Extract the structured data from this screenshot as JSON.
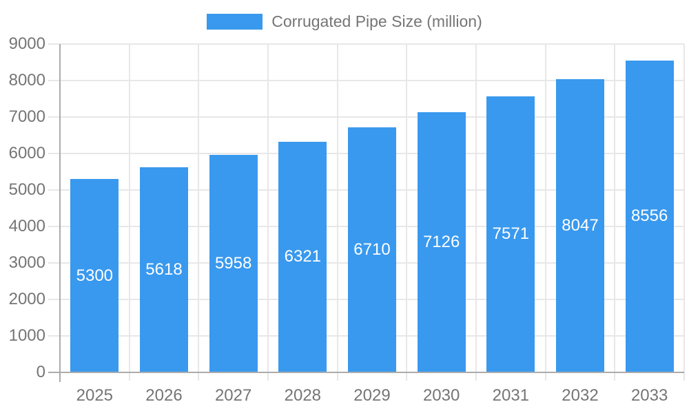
{
  "chart_data": {
    "type": "bar",
    "title": "Corrugated Pipe Size (million)",
    "legend": {
      "entries": [
        "Corrugated Pipe Size (million)"
      ],
      "position": "top-center"
    },
    "categories": [
      "2025",
      "2026",
      "2027",
      "2028",
      "2029",
      "2030",
      "2031",
      "2032",
      "2033"
    ],
    "series": [
      {
        "name": "Corrugated Pipe Size (million)",
        "values": [
          5300,
          5618,
          5958,
          6321,
          6710,
          7126,
          7571,
          8047,
          8556
        ]
      }
    ],
    "xlabel": "",
    "ylabel": "",
    "ylim": [
      0,
      9000
    ],
    "ytick_step": 1000,
    "yticks": [
      0,
      1000,
      2000,
      3000,
      4000,
      5000,
      6000,
      7000,
      8000,
      9000
    ],
    "grid": true,
    "bar_labels": "inside-center",
    "colors": {
      "bar": "#3999EE",
      "bar_label_text": "#FFFFFF",
      "axis_text": "#757575",
      "legend_text": "#757575",
      "gridline": "#E7E7E7",
      "axis_line": "#ABABAB"
    }
  }
}
